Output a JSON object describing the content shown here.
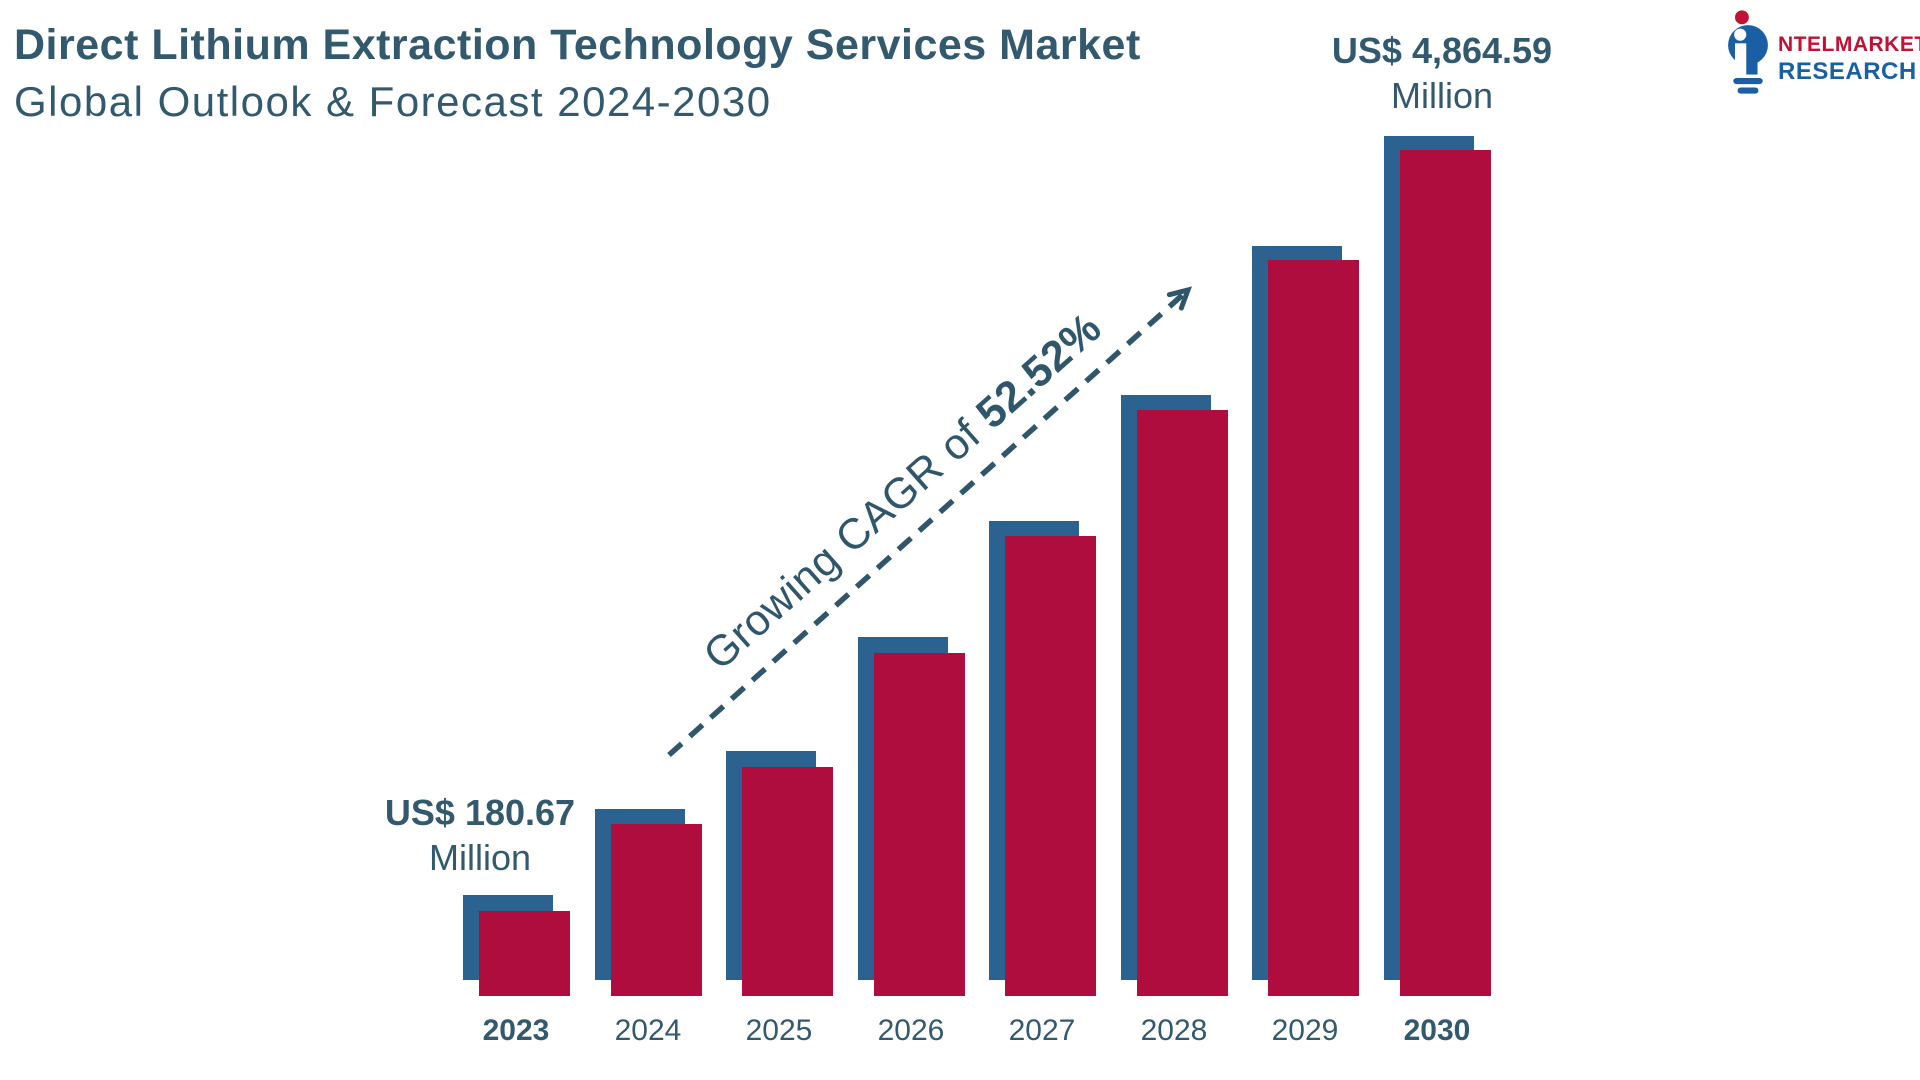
{
  "header": {
    "title": "Direct Lithium Extraction Technology Services Market",
    "subtitle": "Global Outlook & Forecast 2024-2030"
  },
  "annotations": {
    "start_label": {
      "value": "US$ 180.67",
      "unit": "Million"
    },
    "end_label": {
      "value": "US$ 4,864.59",
      "unit": "Million"
    },
    "cagr_prefix": "Growing CAGR of ",
    "cagr_value": "52.52%"
  },
  "logo": {
    "name_part1": "NTELMARKET",
    "name_part2": "RESEARCH"
  },
  "colors": {
    "slate_text": "#33596E",
    "arrow": "#2F566B",
    "bar_crimson": "#B00D3F",
    "bar_blue": "#2C6290",
    "logo_red": "#C11236",
    "logo_blue": "#1A5FA3"
  },
  "chart_data": {
    "type": "bar",
    "title": "Direct Lithium Extraction Technology Services Market",
    "subtitle": "Global Outlook & Forecast 2024-2030",
    "categories": [
      "2023",
      "2024",
      "2025",
      "2026",
      "2027",
      "2028",
      "2029",
      "2030"
    ],
    "series": [
      {
        "name": "market-size-shadow",
        "color": "#2C6290",
        "relative_heights": [
          0.101,
          0.203,
          0.271,
          0.406,
          0.544,
          0.693,
          0.87,
          1.0
        ]
      },
      {
        "name": "market-size",
        "color": "#B00D3F",
        "relative_heights": [
          0.101,
          0.203,
          0.271,
          0.406,
          0.544,
          0.693,
          0.87,
          1.0
        ]
      }
    ],
    "labeled_points": [
      {
        "category": "2023",
        "label": "US$ 180.67 Million",
        "value_million_usd": 180.67
      },
      {
        "category": "2030",
        "label": "US$ 4,864.59 Million",
        "value_million_usd": 4864.59
      }
    ],
    "cagr_annotation": "Growing CAGR of 52.52%",
    "emphasized_categories": [
      "2023",
      "2030"
    ],
    "axes": {
      "y_axis_shown": false,
      "grid": false,
      "x_tick_labels_shown": true
    },
    "legend": "none",
    "unit": "US$ Million"
  }
}
